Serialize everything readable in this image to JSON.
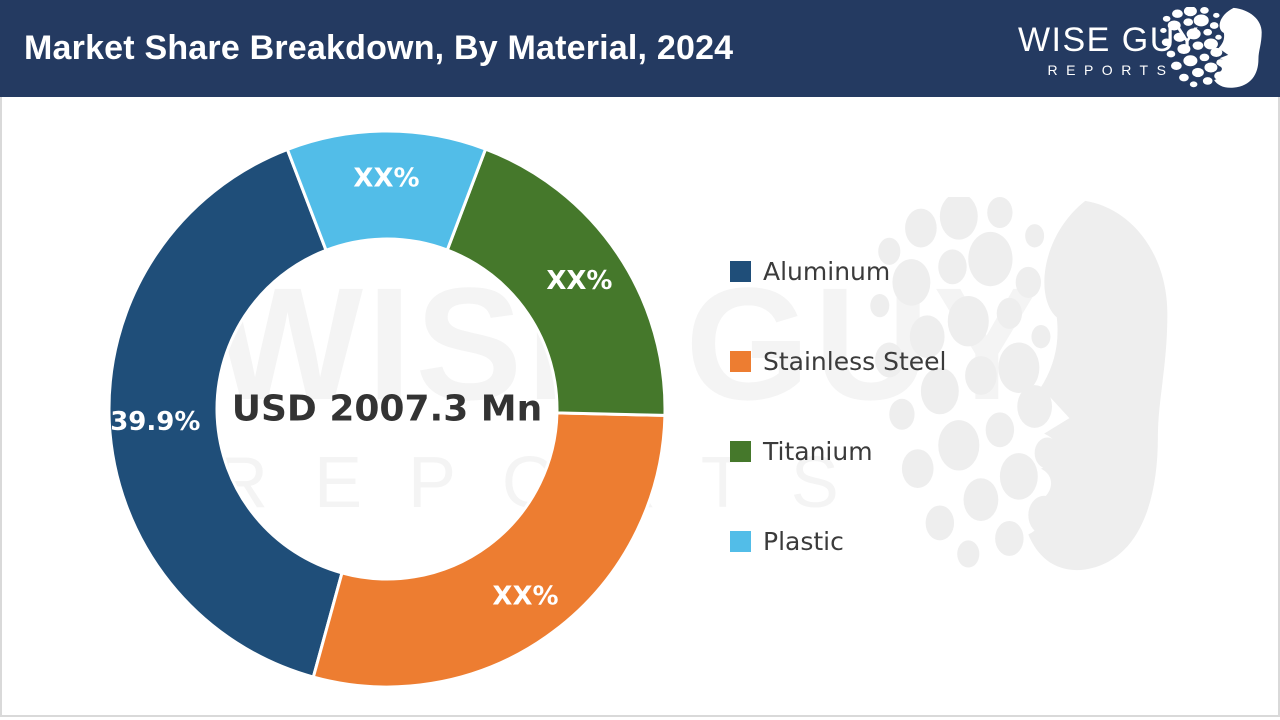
{
  "header": {
    "title": "Market Share Breakdown, By Material, 2024",
    "bg_color": "#243A61",
    "logo": {
      "line1": "WISE GUY",
      "line2": "REPORTS"
    }
  },
  "watermark": {
    "line1": "WISE GUY",
    "line2": "REPORTS"
  },
  "chart_data": {
    "type": "pie",
    "donut": true,
    "title": "Market Share Breakdown, By Material, 2024",
    "center_label": "USD 2007.3 Mn",
    "start_angle_deg": 111,
    "direction": "counterclockwise",
    "legend_position": "right",
    "inner_radius_ratio": 0.61,
    "segments": [
      {
        "label": "Aluminum",
        "value_pct": 39.9,
        "display_label": "39.9%",
        "color": "#1F4E79"
      },
      {
        "label": "Stainless Steel",
        "value_pct": 28.9,
        "display_label": "XX%",
        "color": "#ED7D31"
      },
      {
        "label": "Titanium",
        "value_pct": 19.6,
        "display_label": "XX%",
        "color": "#45782B"
      },
      {
        "label": "Plastic",
        "value_pct": 11.6,
        "display_label": "XX%",
        "color": "#52BDE8"
      }
    ]
  }
}
